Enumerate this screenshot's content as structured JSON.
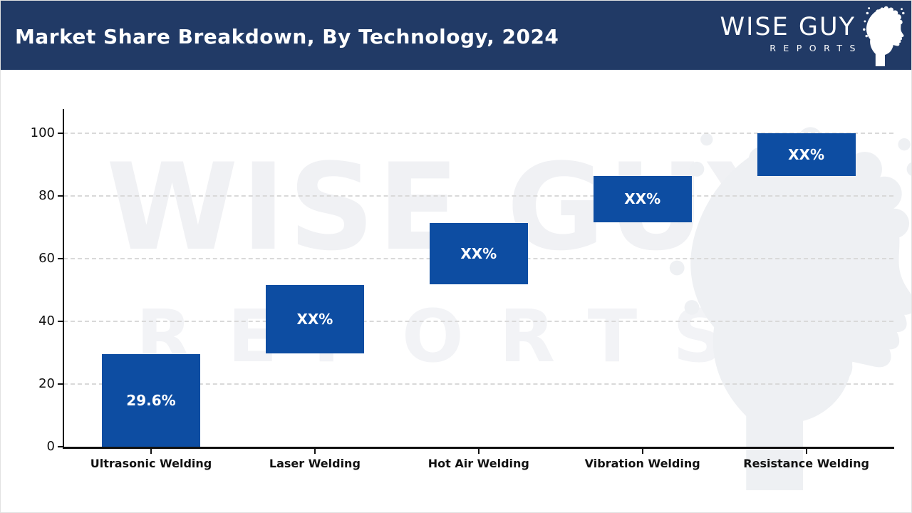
{
  "header": {
    "title": "Market Share Breakdown, By Technology, 2024",
    "logo": {
      "line1": "WISE GUY",
      "line2": "REPORTS",
      "head_icon": "dotted-head-profile"
    }
  },
  "watermark": {
    "line1": "WISE GUY",
    "line2": "REPORTS",
    "head_icon": "dotted-head-profile"
  },
  "colors": {
    "header_background": "#213a66",
    "bar_blue": "#0d4da2",
    "bar_label_white": "#ffffff",
    "gridline_gray": "#d9d9d9",
    "axis_black": "#111111",
    "watermark_gray": "#f0f1f4"
  },
  "chart_data": {
    "type": "bar",
    "subtype": "waterfall-floating-bars",
    "title": "Market Share Breakdown, By Technology, 2024",
    "categories": [
      "Ultrasonic Welding",
      "Laser Welding",
      "Hot Air Welding",
      "Vibration Welding",
      "Resistance Welding"
    ],
    "bars": [
      {
        "category": "Ultrasonic Welding",
        "start": 0,
        "end": 29.6,
        "label": "29.6%"
      },
      {
        "category": "Laser Welding",
        "start": 29.8,
        "end": 51.6,
        "label": "XX%"
      },
      {
        "category": "Hot Air Welding",
        "start": 51.8,
        "end": 71.4,
        "label": "XX%"
      },
      {
        "category": "Vibration Welding",
        "start": 71.6,
        "end": 86.4,
        "label": "XX%"
      },
      {
        "category": "Resistance Welding",
        "start": 86.4,
        "end": 100,
        "label": "XX%"
      }
    ],
    "xlabel": "",
    "ylabel": "",
    "yticks": [
      0,
      20,
      40,
      60,
      80,
      100
    ],
    "ylim": [
      0,
      107
    ],
    "grid": {
      "axis": "y",
      "style": "dashed",
      "visible": true
    },
    "legend": "none",
    "bar_color": "#0d4da2",
    "bar_label_color": "#ffffff"
  }
}
